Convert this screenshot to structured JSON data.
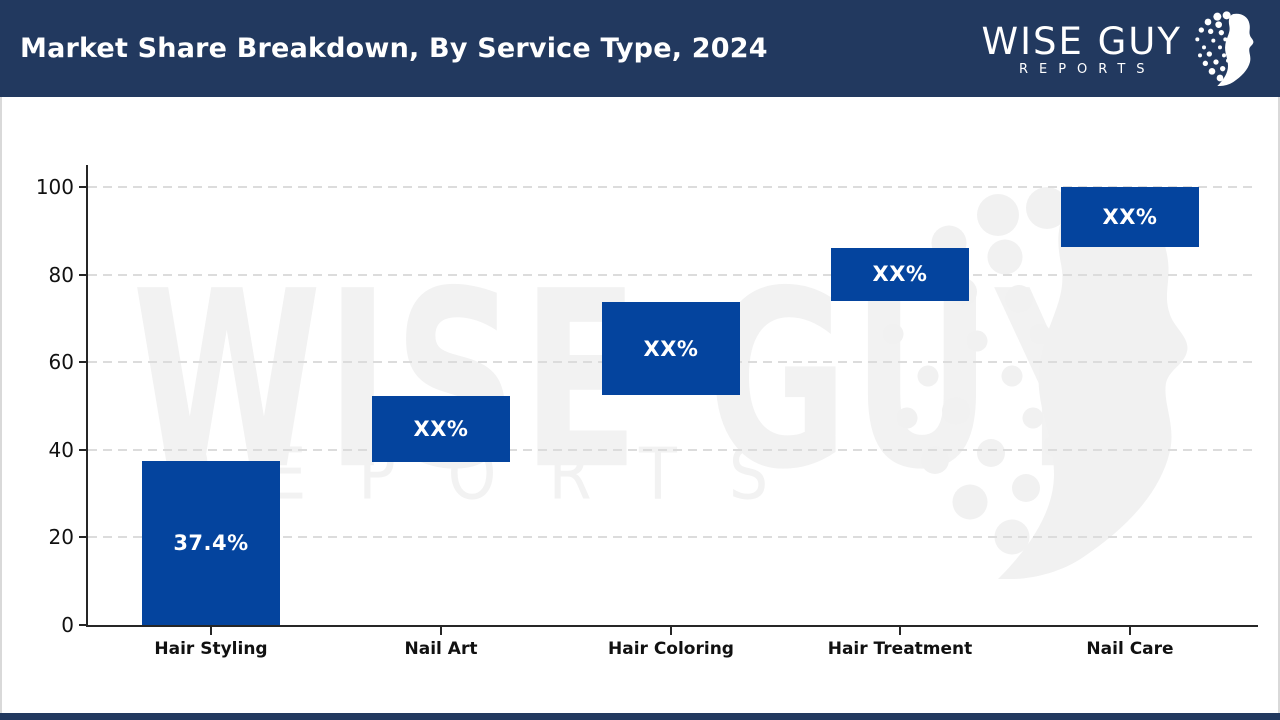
{
  "header": {
    "title": "Market Share Breakdown, By Service Type, 2024",
    "logo": {
      "name": "WISE GUY",
      "subtitle": "REPORTS"
    }
  },
  "watermark": {
    "line1": "WISE GUY",
    "line2": "REPORTS"
  },
  "chart_data": {
    "type": "bar",
    "subtype": "waterfall",
    "title": "Market Share Breakdown, By Service Type, 2024",
    "categories": [
      "Hair Styling",
      "Nail Art",
      "Hair Coloring",
      "Hair Treatment",
      "Nail Care"
    ],
    "bars": [
      {
        "category": "Hair Styling",
        "start": 0,
        "end": 37.4,
        "label": "37.4%"
      },
      {
        "category": "Nail Art",
        "start": 37.2,
        "end": 52.3,
        "label": "XX%"
      },
      {
        "category": "Hair Coloring",
        "start": 52.5,
        "end": 73.7,
        "label": "XX%"
      },
      {
        "category": "Hair Treatment",
        "start": 74.0,
        "end": 86.1,
        "label": "XX%"
      },
      {
        "category": "Nail Care",
        "start": 86.3,
        "end": 100,
        "label": "XX%"
      }
    ],
    "xlabel": "",
    "ylabel": "",
    "yticks": [
      0,
      20,
      40,
      60,
      80,
      100
    ],
    "ylim": [
      0,
      105
    ],
    "grid": "horizontal-dashed",
    "legend": "none",
    "colors": {
      "bar": "#04449E",
      "bar_label": "#ffffff",
      "grid": "#dcdcdc",
      "axis": "#262626",
      "header_bg": "#22395F",
      "tick_label": "#111111"
    }
  }
}
